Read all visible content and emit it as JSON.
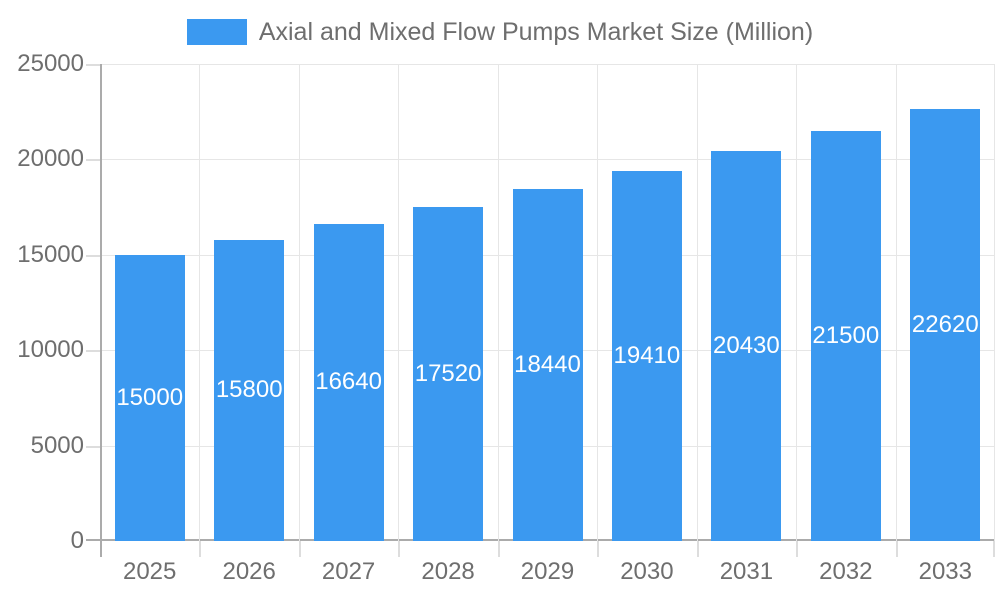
{
  "chart_data": {
    "type": "bar",
    "title": "Axial and Mixed Flow Pumps Market Size (Million)",
    "categories": [
      "2025",
      "2026",
      "2027",
      "2028",
      "2029",
      "2030",
      "2031",
      "2032",
      "2033"
    ],
    "values": [
      15000,
      15800,
      16640,
      17520,
      18440,
      19410,
      20430,
      21500,
      22620
    ],
    "xlabel": "",
    "ylabel": "",
    "ylim": [
      0,
      25000
    ],
    "ytick_step": 5000,
    "yticks": [
      0,
      5000,
      10000,
      15000,
      20000,
      25000
    ],
    "grid": true,
    "legend_position": "top",
    "bar_value_labels": "inside-center-white"
  },
  "legend": {
    "label": "Axial and Mixed Flow Pumps Market Size (Million)"
  },
  "colors": {
    "bar": "#3B99F0",
    "grid": "#E6E6E6",
    "axis": "#ABABAB",
    "tick": "#DDDDDD",
    "text": "#6E6E6E",
    "bar_label_text": "#FFFFFF",
    "background": "#FFFFFF"
  }
}
